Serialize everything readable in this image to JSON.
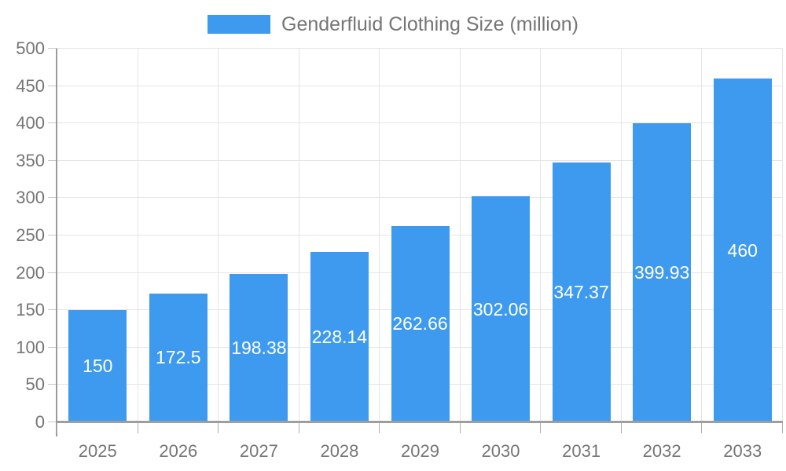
{
  "chart_data": {
    "type": "bar",
    "title": "Genderfluid Clothing Size (million)",
    "series_name": "Genderfluid Clothing Size (million)",
    "categories": [
      "2025",
      "2026",
      "2027",
      "2028",
      "2029",
      "2030",
      "2031",
      "2032",
      "2033"
    ],
    "values": [
      150,
      172.5,
      198.38,
      228.14,
      262.66,
      302.06,
      347.37,
      399.93,
      460
    ],
    "value_labels": [
      "150",
      "172.5",
      "198.38",
      "228.14",
      "262.66",
      "302.06",
      "347.37",
      "399.93",
      "460"
    ],
    "value_label_position": "inside-center",
    "xlabel": "",
    "ylabel": "",
    "ylim": [
      0,
      500
    ],
    "ytick_interval": 50,
    "ytick_labels": [
      "0",
      "50",
      "100",
      "150",
      "200",
      "250",
      "300",
      "350",
      "400",
      "450",
      "500"
    ],
    "grid": true,
    "legend_position": "top-center",
    "colors": {
      "bar": "#3D9AEF",
      "value_label": "#FFFFFF",
      "axis_text": "#757575",
      "grid_line": "#E5E5E5",
      "axis_line": "#9E9E9E",
      "y_axis_line": "#9A9A9A",
      "y_tick": "#C9C9C9",
      "x_tick": "#ADADAD",
      "background": "#FFFFFF"
    }
  }
}
